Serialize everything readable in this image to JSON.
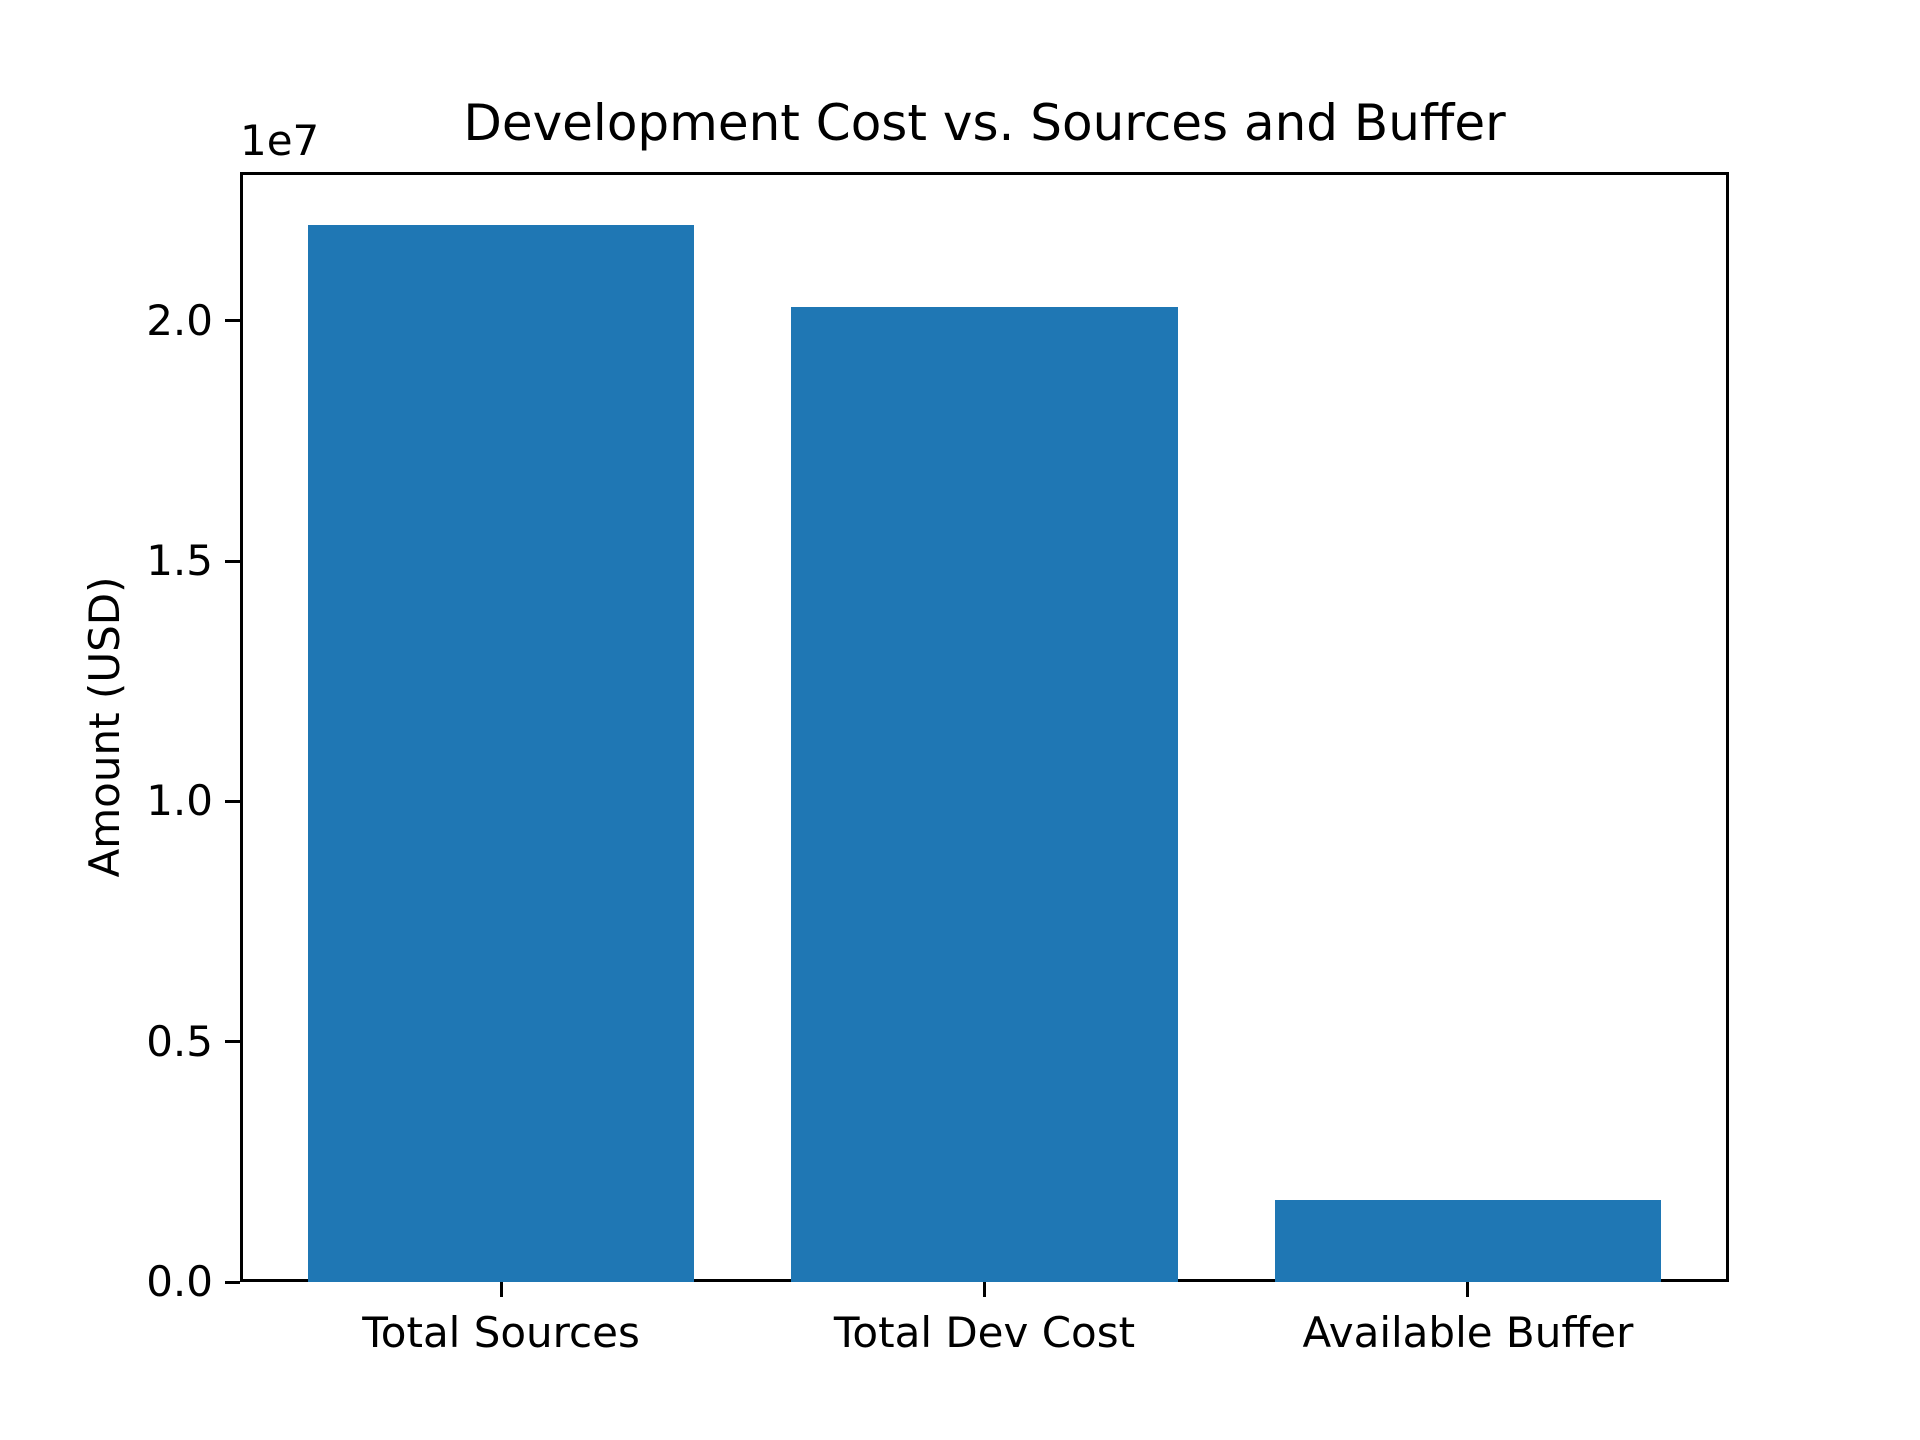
{
  "chart_data": {
    "type": "bar",
    "title": "Development Cost vs. Sources and Buffer",
    "xlabel": "",
    "ylabel": "Amount (USD)",
    "offset_text": "1e7",
    "categories": [
      "Total Sources",
      "Total Dev Cost",
      "Available Buffer"
    ],
    "values": [
      22000000,
      20300000,
      1700000
    ],
    "bar_positions": [
      0,
      1,
      2
    ],
    "bar_width": 0.8,
    "xlim": [
      -0.54,
      2.54
    ],
    "ylim": [
      0,
      23100000
    ],
    "yticks": [
      0,
      5000000,
      10000000,
      15000000,
      20000000
    ],
    "ytick_labels": [
      "0.0",
      "0.5",
      "1.0",
      "1.5",
      "2.0"
    ],
    "bar_color": "#1f77b4",
    "axis_color": "#000000",
    "background_color": "#ffffff",
    "grid": false,
    "legend_position": "none"
  }
}
